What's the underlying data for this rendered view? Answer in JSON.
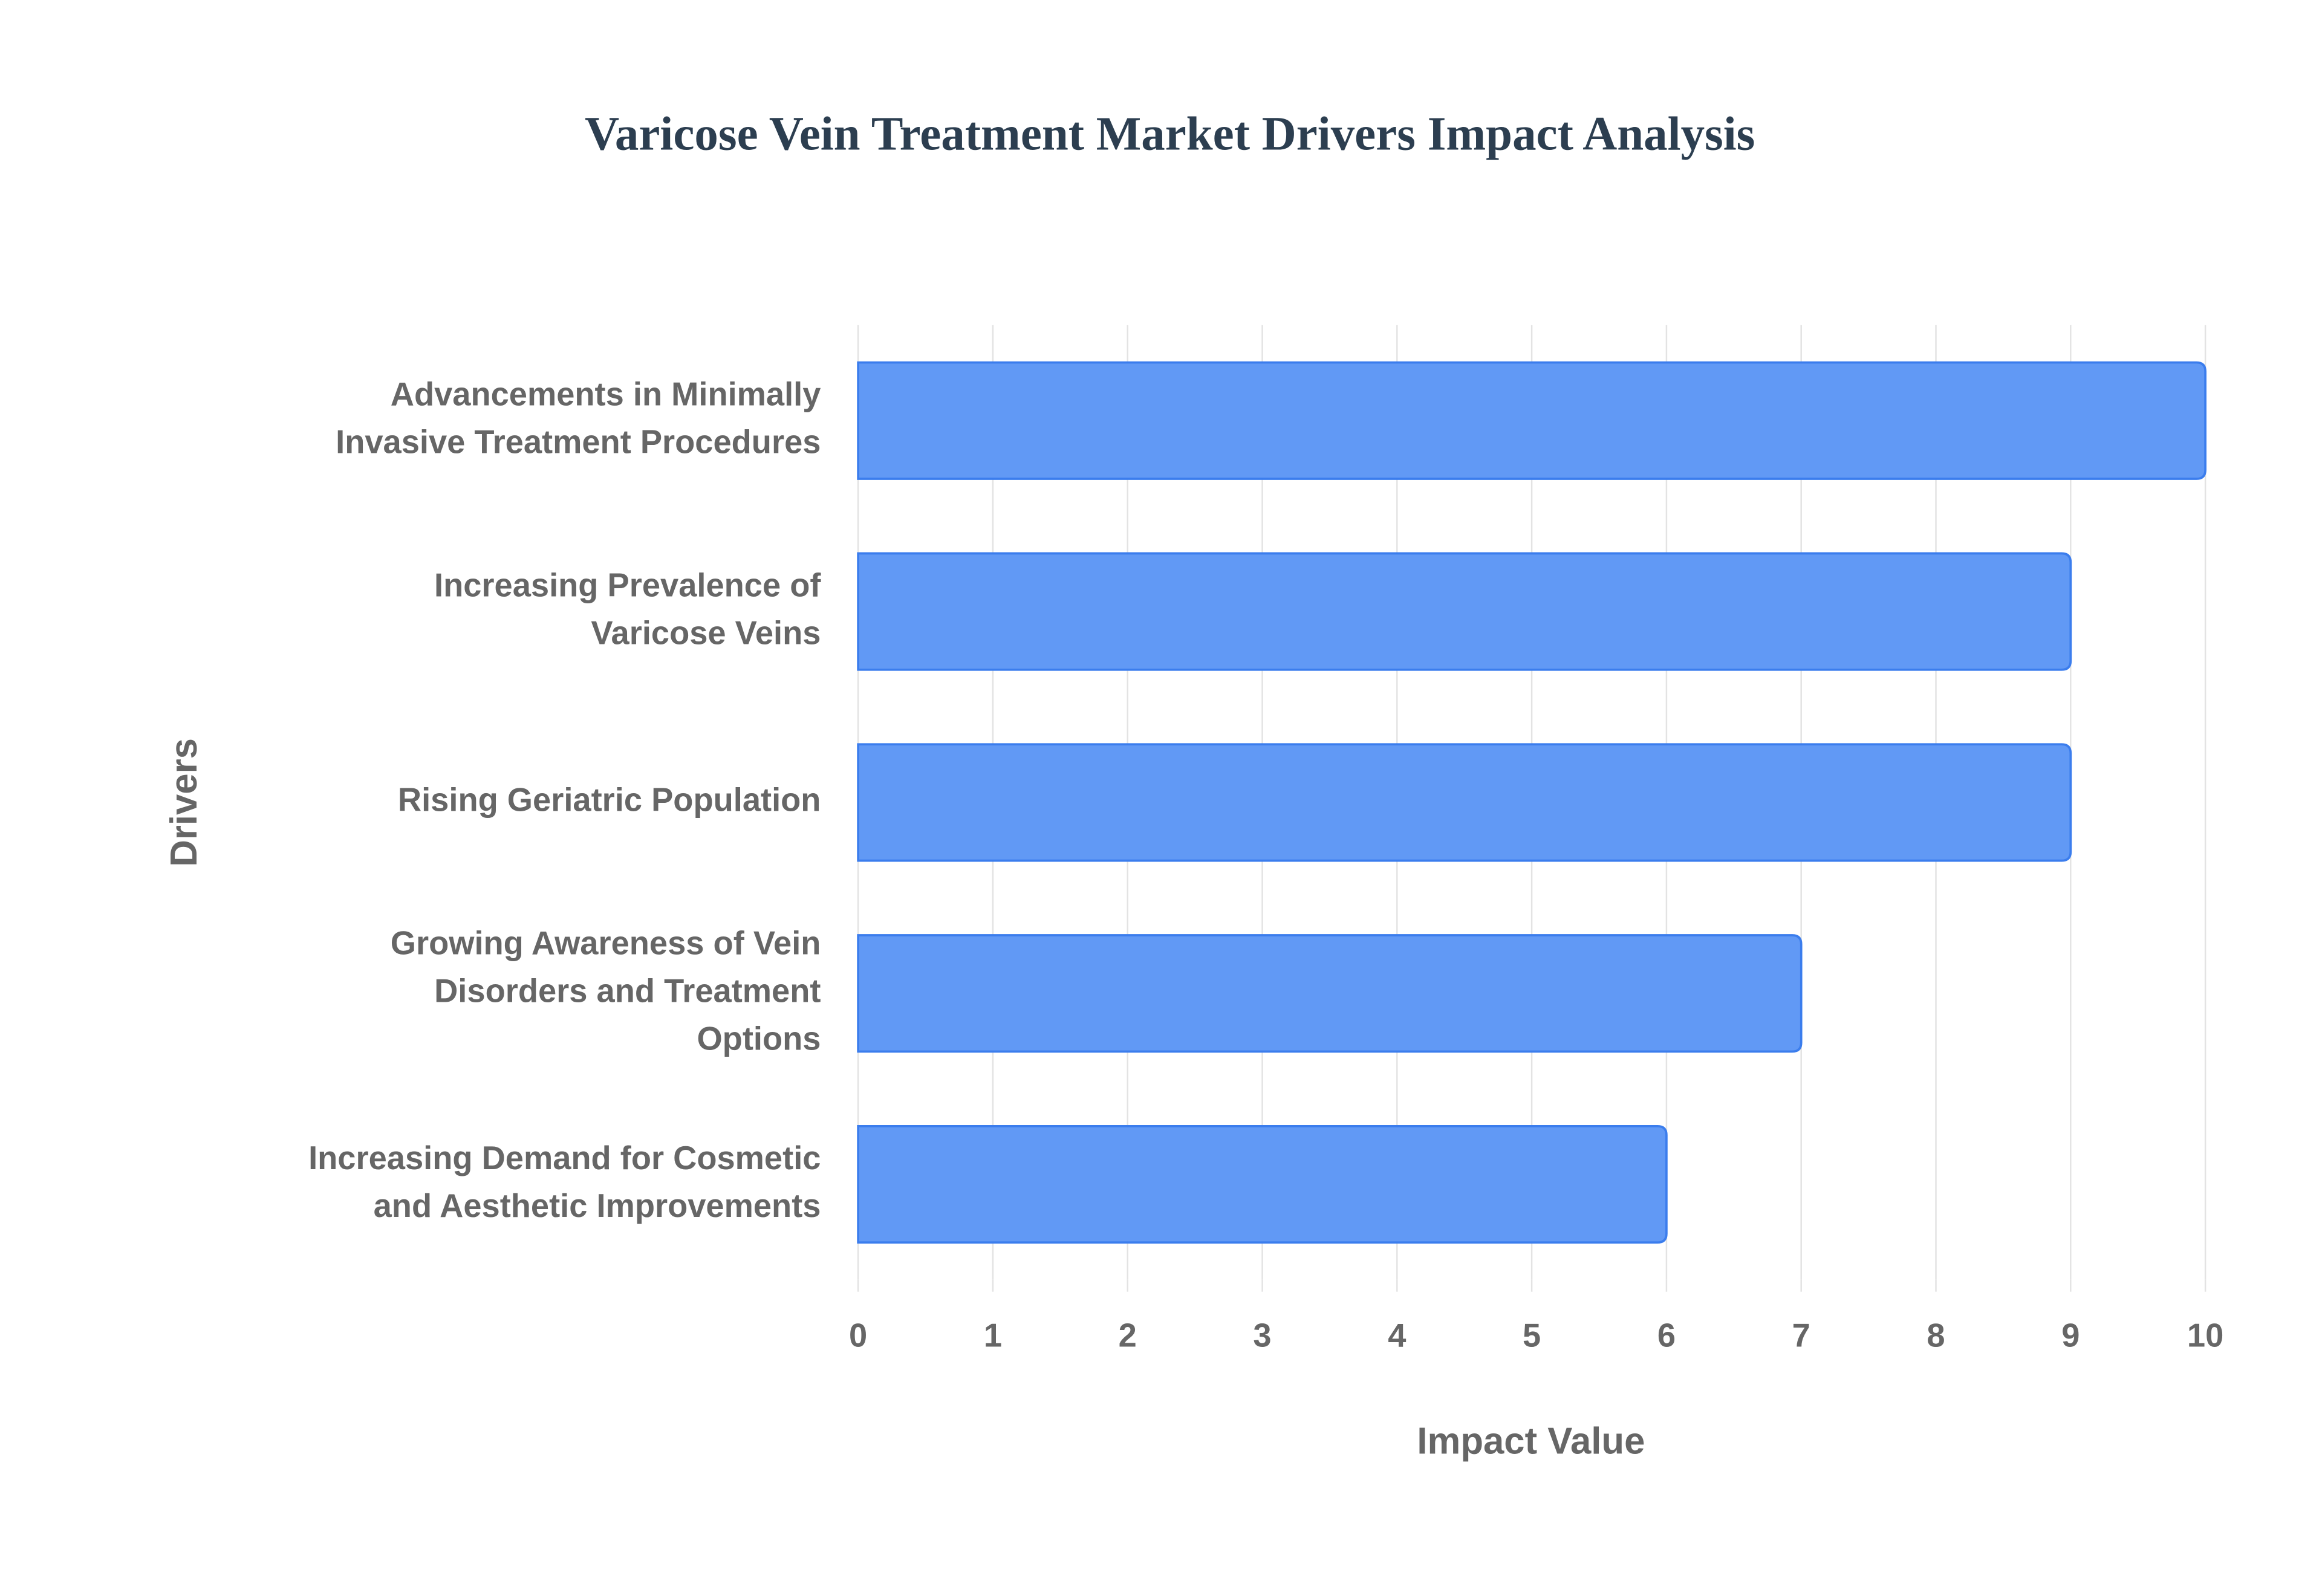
{
  "chart_data": {
    "type": "hbar",
    "title": "Varicose Vein Treatment Market Drivers Impact Analysis",
    "x_label": "Impact Value",
    "y_label": "Drivers",
    "categories": [
      [
        "Advancements in Minimally",
        "Invasive Treatment Procedures"
      ],
      [
        "Increasing Prevalence of",
        "Varicose Veins"
      ],
      [
        "Rising Geriatric Population"
      ],
      [
        "Growing Awareness of Vein",
        "Disorders and Treatment",
        "Options"
      ],
      [
        "Increasing Demand for Cosmetic",
        "and Aesthetic Improvements"
      ]
    ],
    "values": [
      10,
      9,
      9,
      7,
      6
    ],
    "color": "#6199f5",
    "xlim": [
      0,
      10
    ],
    "xticks": [
      0,
      1,
      2,
      3,
      4,
      5,
      6,
      7,
      8,
      9,
      10
    ],
    "grid": true
  }
}
